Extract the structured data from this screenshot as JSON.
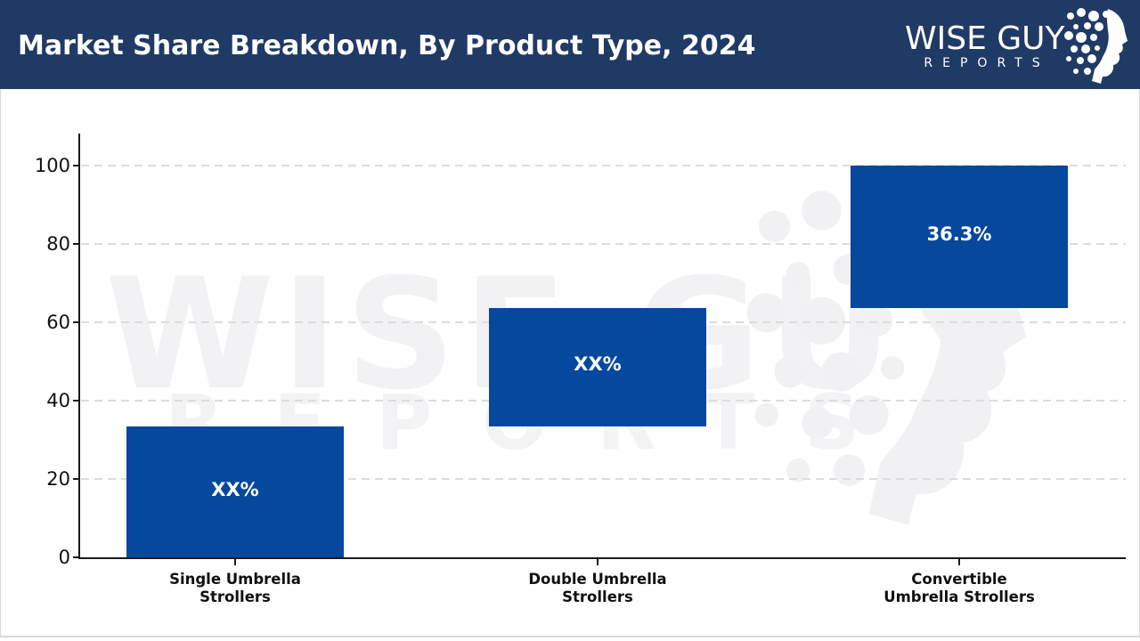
{
  "header": {
    "title": "Market Share Breakdown, By Product Type, 2024",
    "logo": {
      "primary": "WISE GUY",
      "secondary": "REPORTS"
    }
  },
  "watermark": {
    "line1": "WISE GUY",
    "line2": "REPORTS"
  },
  "colors": {
    "header_bg": "#203A66",
    "bar": "#06489C",
    "grid": "#DCDCDC",
    "axis": "#1A1A1A",
    "bar_label_text": "#FFFFFF",
    "watermark_text": "#F2F2F5",
    "frame_border": "#D9D9D9"
  },
  "chart_data": {
    "type": "bar",
    "subtype": "waterfall-stacked-segments",
    "title": "Market Share Breakdown, By Product Type, 2024",
    "categories": [
      [
        "Single Umbrella",
        "Strollers"
      ],
      [
        "Double Umbrella",
        "Strollers"
      ],
      [
        "Convertible",
        "Umbrella Strollers"
      ]
    ],
    "values": [
      33.4,
      30.3,
      36.3
    ],
    "bases": [
      0,
      33.4,
      63.7
    ],
    "bar_labels": [
      "XX%",
      "XX%",
      "36.3%"
    ],
    "xlabel": "",
    "ylabel": "",
    "ylim": [
      0,
      100
    ],
    "yticks": [
      0,
      20,
      40,
      60,
      80,
      100
    ],
    "grid": "horizontal-dashed",
    "legend": "none"
  }
}
